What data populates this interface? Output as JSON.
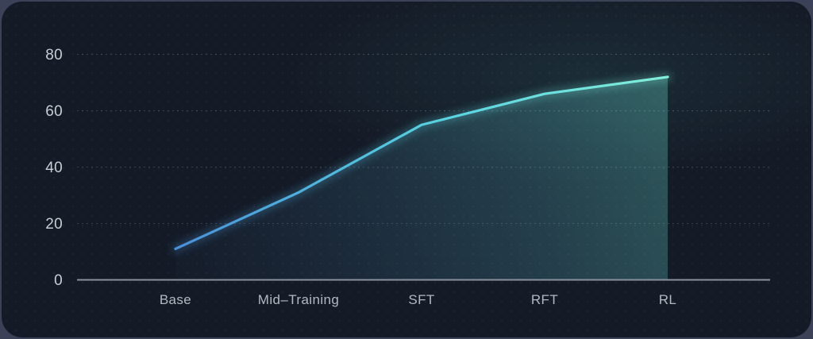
{
  "page": {
    "kind": "chart-card"
  },
  "theme": {
    "page_bg": "#3b4157",
    "card_bg": "#141a26",
    "grid_color": "rgba(206,216,232,0.20)",
    "axis_line_color": "#8b919c",
    "y_tick_label_color": "#c9cdd4",
    "x_tick_label_color": "#b4b9c1",
    "line_gradient": [
      "#4a90d8",
      "#56cfe0",
      "#83efdb"
    ],
    "area_gradient_from": "rgba(74,144,216,0.02)",
    "area_gradient_to": "rgba(110,232,214,0.30)",
    "ambient_glow_color": "rgba(90,210,200,0.10)"
  },
  "chart_data": {
    "type": "line",
    "title": "",
    "categories": [
      "Base",
      "Mid–Training",
      "SFT",
      "RFT",
      "RL"
    ],
    "values": [
      11,
      31,
      55,
      66,
      72
    ],
    "xlabel": "",
    "ylabel": "",
    "ylim": [
      0,
      80
    ],
    "yticks": [
      0,
      20,
      40,
      60,
      80
    ],
    "grid": true,
    "legend_position": "none",
    "area_fill": true
  }
}
